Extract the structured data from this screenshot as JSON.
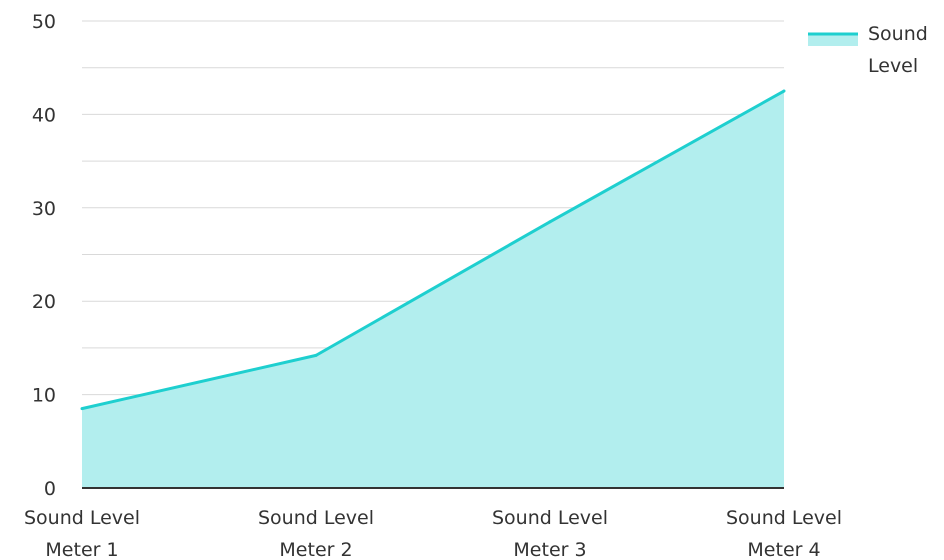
{
  "chart_data": {
    "type": "area",
    "categories": [
      [
        "Sound Level",
        "Meter 1"
      ],
      [
        "Sound Level",
        "Meter 2"
      ],
      [
        "Sound Level",
        "Meter 3"
      ],
      [
        "Sound Level",
        "Meter 4"
      ]
    ],
    "series": [
      {
        "name": "Sound Level",
        "values": [
          8.5,
          14.2,
          28.5,
          42.5
        ]
      }
    ],
    "ylim": [
      0,
      50
    ],
    "yticks": [
      "0",
      "10",
      "20",
      "30",
      "40",
      "50"
    ],
    "grid": true,
    "legend_position": "top-right",
    "legend_label_lines": [
      "Sound",
      "Level"
    ],
    "colors": {
      "line": "#1ecfcf",
      "fill": "#b2eeee",
      "grid": "#d9d9d9",
      "axis": "#333333"
    }
  }
}
